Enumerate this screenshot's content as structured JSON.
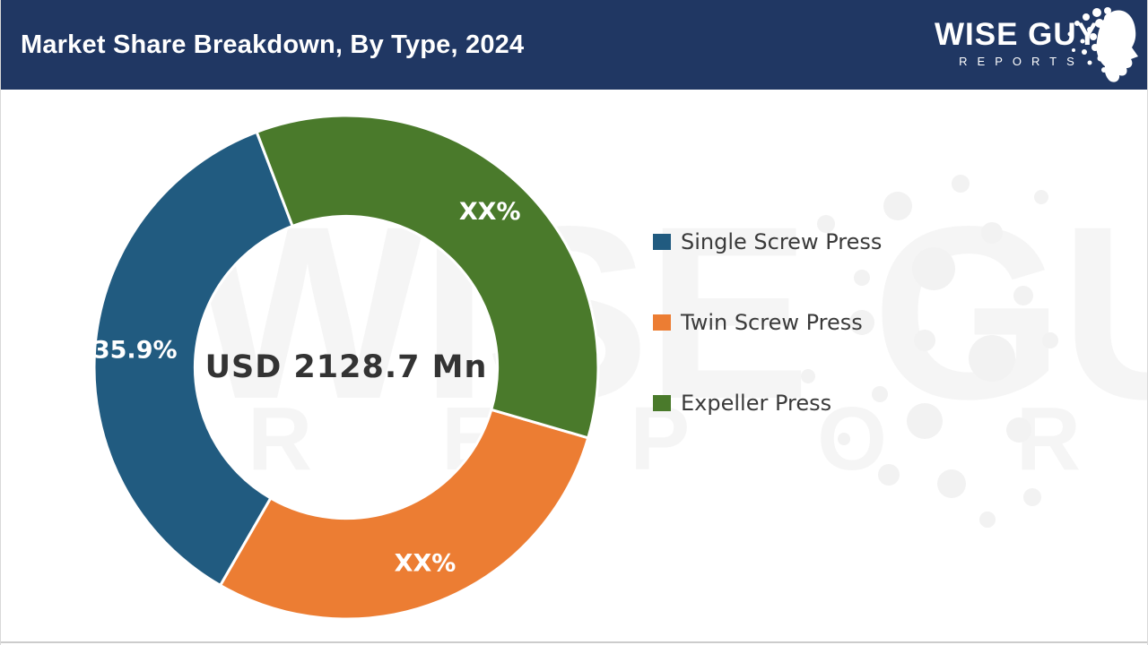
{
  "header": {
    "title": "Market Share Breakdown, By Type, 2024",
    "bg_color": "#203763",
    "logo": {
      "primary": "WISE GUY",
      "secondary": "REPORTS"
    }
  },
  "watermark": {
    "line1": "WISE GUY",
    "line2": "R E P O R T S"
  },
  "chart_data": {
    "type": "donut",
    "title": "Market Share Breakdown, By Type, 2024",
    "center_label": "USD 2128.7 Mn",
    "start_angle_deg": 110.8,
    "direction": "counterclockwise",
    "inner_radius_ratio": 0.6,
    "label_radius_ratio": 0.84,
    "slice_label_color": "#ffffff",
    "center_label_color": "#333333",
    "legend_position": "right",
    "segments": [
      {
        "name": "Single Screw Press",
        "display_label": "35.9%",
        "value_pct": 35.9,
        "color": "#215B80"
      },
      {
        "name": "Twin Screw Press",
        "display_label": "XX%",
        "value_pct": 28.8,
        "color": "#EC7D33"
      },
      {
        "name": "Expeller Press",
        "display_label": "XX%",
        "value_pct": 35.3,
        "color": "#4A7A2B"
      }
    ]
  }
}
